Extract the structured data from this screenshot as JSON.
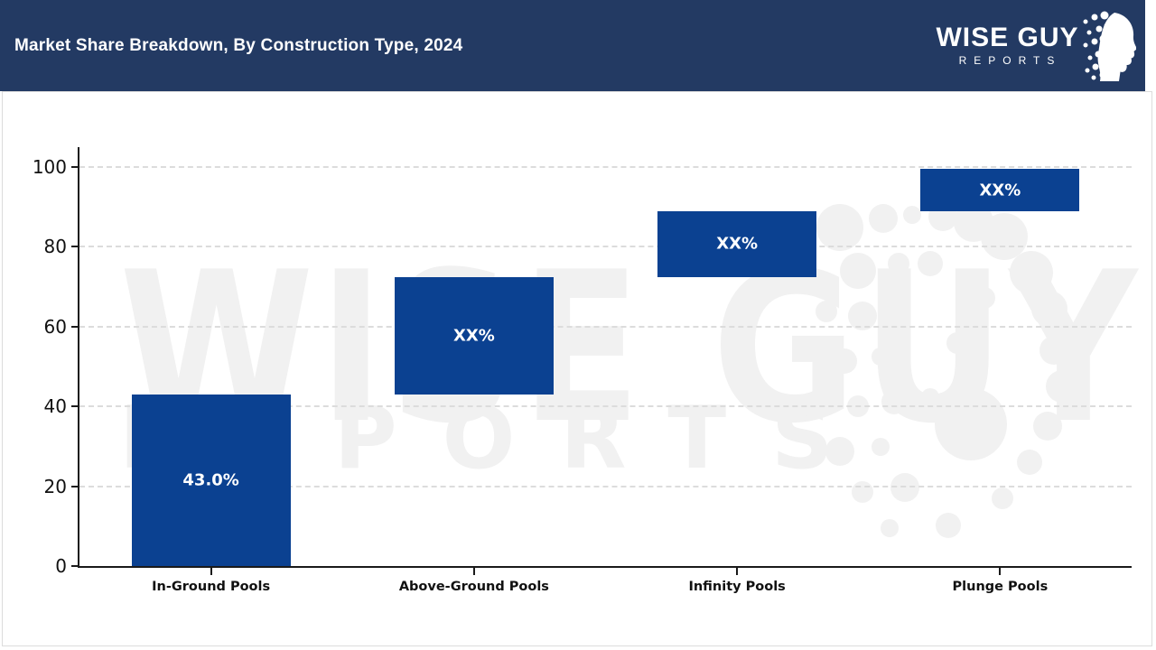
{
  "header": {
    "title": "Market Share Breakdown, By Construction Type, 2024",
    "logo": {
      "line1": "WISE GUY",
      "line2": "REPORTS"
    }
  },
  "watermark": {
    "line1": "WISE GUY",
    "line2": "REPORTS"
  },
  "icons": {
    "logo_face": "dotted-head-profile",
    "watermark_face": "dotted-head-profile"
  },
  "colors": {
    "header_bg": "#233a63",
    "bar": "#0b4191",
    "bar_label": "#ffffff",
    "grid": "#dcdcdc",
    "axis": "#1a1a1a",
    "tick_label": "#111111",
    "watermark": "#f1f1f1",
    "frame_border": "#dcdcdc"
  },
  "chart_data": {
    "type": "bar",
    "subtype": "waterfall",
    "title": "Market Share Breakdown, By Construction Type, 2024",
    "categories": [
      "In-Ground Pools",
      "Above-Ground Pools",
      "Infinity Pools",
      "Plunge Pools"
    ],
    "bars": [
      {
        "category": "In-Ground Pools",
        "label": "43.0%",
        "start": 0,
        "end": 43.0
      },
      {
        "category": "Above-Ground Pools",
        "label": "XX%",
        "start": 43.0,
        "end": 72.5
      },
      {
        "category": "Infinity Pools",
        "label": "XX%",
        "start": 72.5,
        "end": 89.0
      },
      {
        "category": "Plunge Pools",
        "label": "XX%",
        "start": 89.0,
        "end": 99.5
      }
    ],
    "yticks": [
      0,
      20,
      40,
      60,
      80,
      100
    ],
    "ylim": [
      0,
      105
    ],
    "xlabel": "",
    "ylabel": "",
    "grid": "horizontal-dashed",
    "legend": "none"
  }
}
